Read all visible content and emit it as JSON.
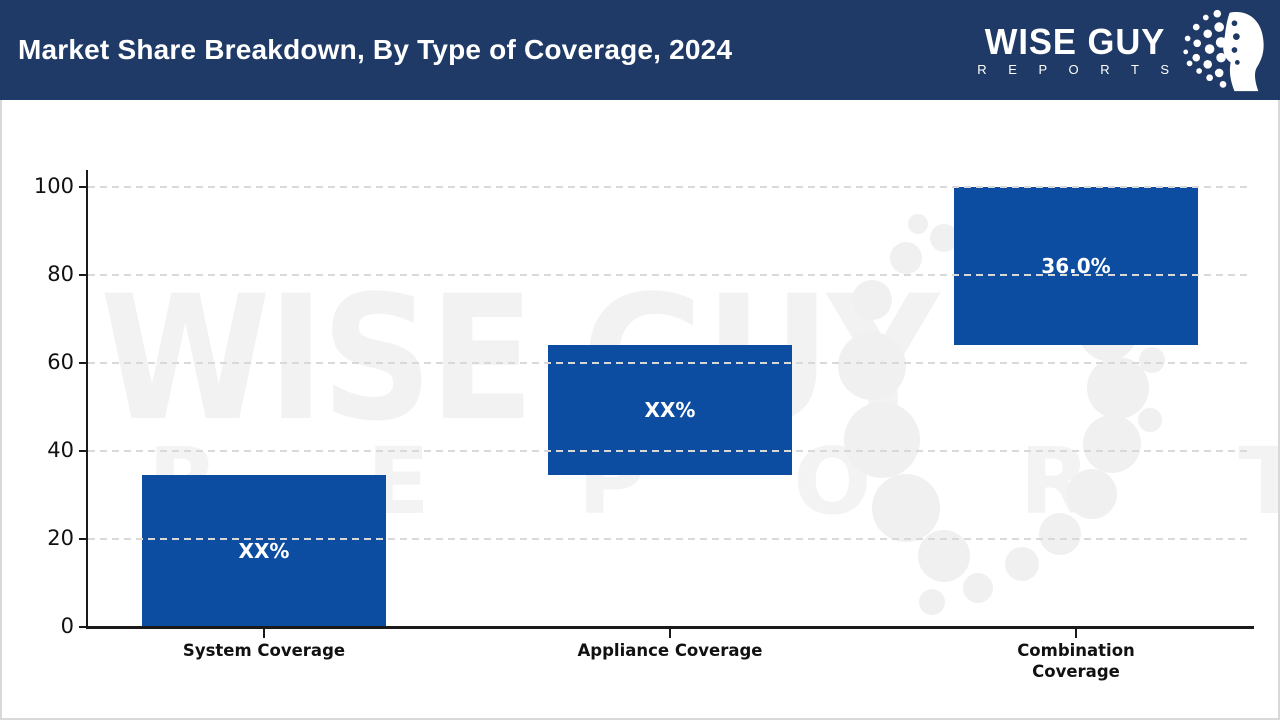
{
  "header": {
    "title": "Market Share Breakdown, By Type of Coverage, 2024",
    "logo_line1": "WISE GUY",
    "logo_line2": "R E P O R T S",
    "bg_color": "#1f3a66",
    "text_color": "#ffffff"
  },
  "watermark": {
    "line1": "WISE GUY",
    "line2": "R E P O R T S"
  },
  "chart_data": {
    "type": "bar",
    "subtype": "waterfall",
    "title": "Market Share Breakdown, By Type of Coverage, 2024",
    "categories": [
      "System Coverage",
      "Appliance Coverage",
      "Combination Coverage"
    ],
    "x_labels": [
      "System Coverage",
      "Appliance Coverage",
      "Combination\nCoverage"
    ],
    "segments": [
      {
        "category": "System Coverage",
        "start": 0,
        "end": 34.5,
        "value": 34.5,
        "label": "XX%"
      },
      {
        "category": "Appliance Coverage",
        "start": 34.5,
        "end": 64,
        "value": 29.5,
        "label": "XX%"
      },
      {
        "category": "Combination Coverage",
        "start": 64,
        "end": 100,
        "value": 36.0,
        "label": "36.0%"
      }
    ],
    "y_ticks": [
      0,
      20,
      40,
      60,
      80,
      100
    ],
    "ylim": [
      0,
      104
    ],
    "xlabel": "",
    "ylabel": "",
    "grid": "horizontal dashed, drawn above bars",
    "legend": "none",
    "bar_color": "#0d4da1",
    "bar_label_color": "#ffffff",
    "grid_color": "#d9d9d9",
    "axis_color": "#1a1a1a"
  }
}
